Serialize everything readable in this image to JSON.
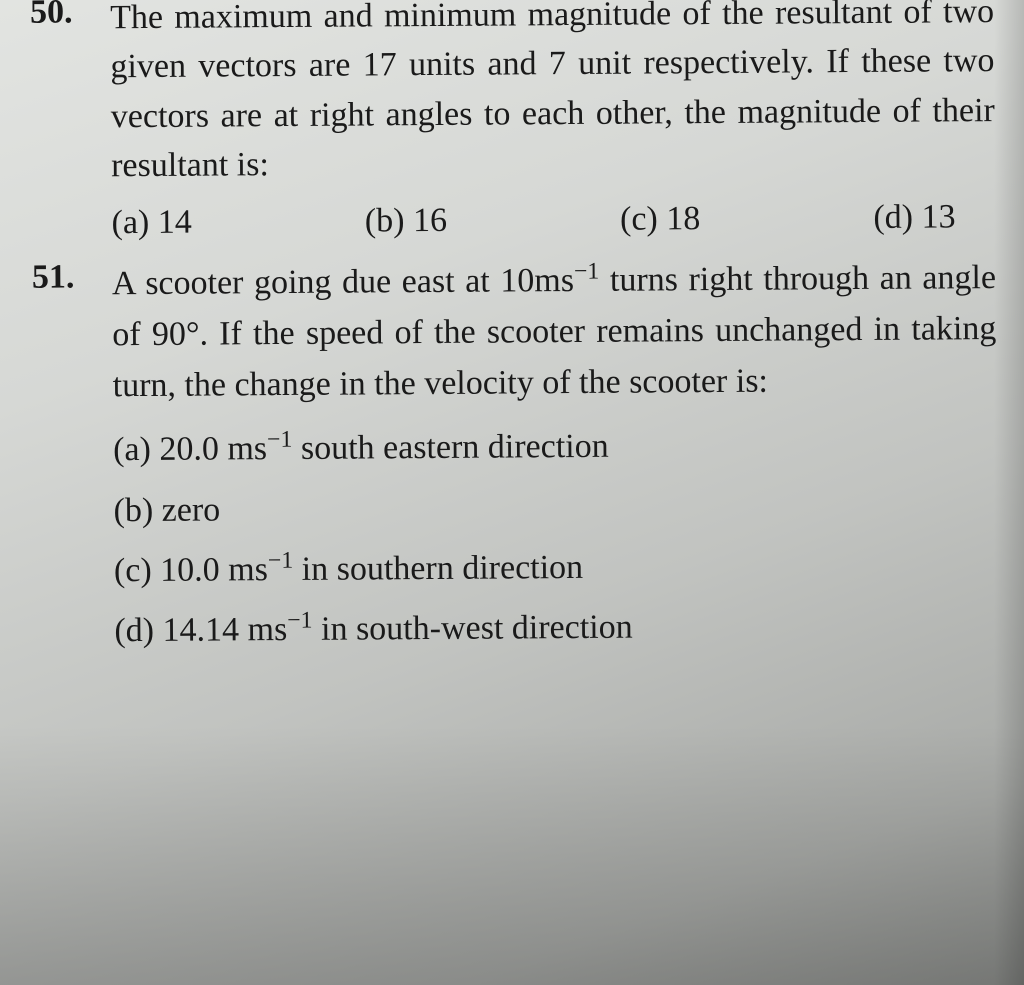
{
  "q50": {
    "number": "50.",
    "stem_html": "The maximum and minimum magnitude of the resultant of two given vectors are 17 units and 7 unit respectively. If these two vectors are at right angles to each other, the magnitude of their resultant is:",
    "options": {
      "a": "(a) 14",
      "b": "(b) 16",
      "c": "(c) 18",
      "d": "(d) 13"
    }
  },
  "q51": {
    "number": "51.",
    "stem_prefix": "A scooter going due east at 10",
    "stem_unit": "ms",
    "stem_exp": "−1",
    "stem_suffix": " turns right through an angle of 90°. If the speed of the scooter remains unchanged in taking turn, the change in the velocity of the scooter is:",
    "options": {
      "a_pre": "(a) 20.0 ms",
      "a_exp": "−1",
      "a_post": " south eastern direction",
      "b": "(b) zero",
      "c_pre": "(c) 10.0 ms",
      "c_exp": "−1",
      "c_post": " in southern direction",
      "d_pre": "(d) 14.14 ms",
      "d_exp": "−1",
      "d_post": " in south-west direction"
    }
  }
}
